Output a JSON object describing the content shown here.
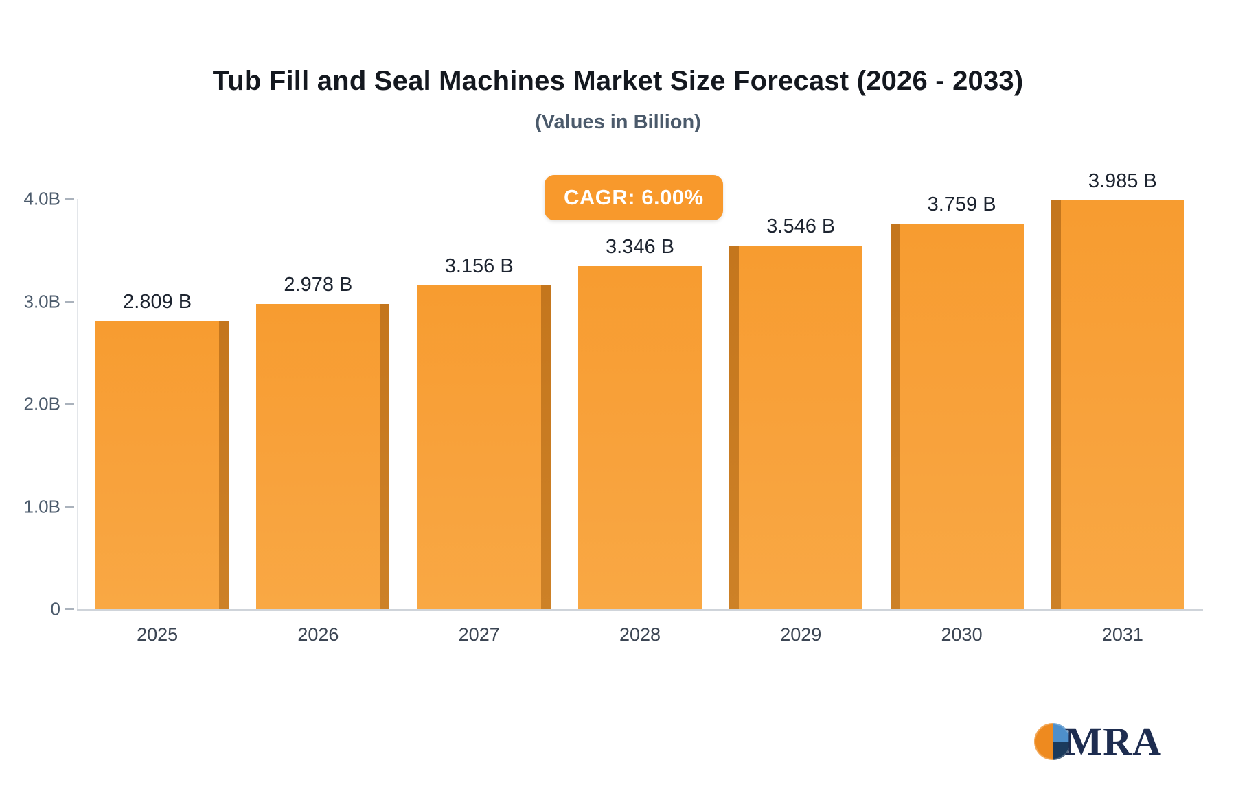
{
  "header": {
    "title": "Tub Fill and Seal Machines Market Size Forecast (2026 - 2033)",
    "subtitle": "(Values in Billion)"
  },
  "cagr_badge": {
    "label": "CAGR: 6.00%",
    "color": "#f8992c"
  },
  "chart_data": {
    "type": "bar",
    "categories": [
      "2025",
      "2026",
      "2027",
      "2028",
      "2029",
      "2030",
      "2031"
    ],
    "values": [
      2.809,
      2.978,
      3.156,
      3.346,
      3.546,
      3.759,
      3.985
    ],
    "value_labels": [
      "2.809 B",
      "2.978 B",
      "3.156 B",
      "3.346 B",
      "3.546 B",
      "3.759 B",
      "3.985 B"
    ],
    "title": "Tub Fill and Seal Machines Market Size Forecast (2026 - 2033)",
    "xlabel": "",
    "ylabel": "",
    "ylim": [
      0,
      4.0
    ],
    "yticks": [
      {
        "value": 0.0,
        "label": "0"
      },
      {
        "value": 1.0,
        "label": "1.0B"
      },
      {
        "value": 2.0,
        "label": "2.0B"
      },
      {
        "value": 3.0,
        "label": "3.0B"
      },
      {
        "value": 4.0,
        "label": "4.0B"
      }
    ],
    "grid": false,
    "legend": "none",
    "bar_color": "#f8a23c",
    "bar_side_color": "#c4761d"
  },
  "logo": {
    "text": "MRA"
  }
}
